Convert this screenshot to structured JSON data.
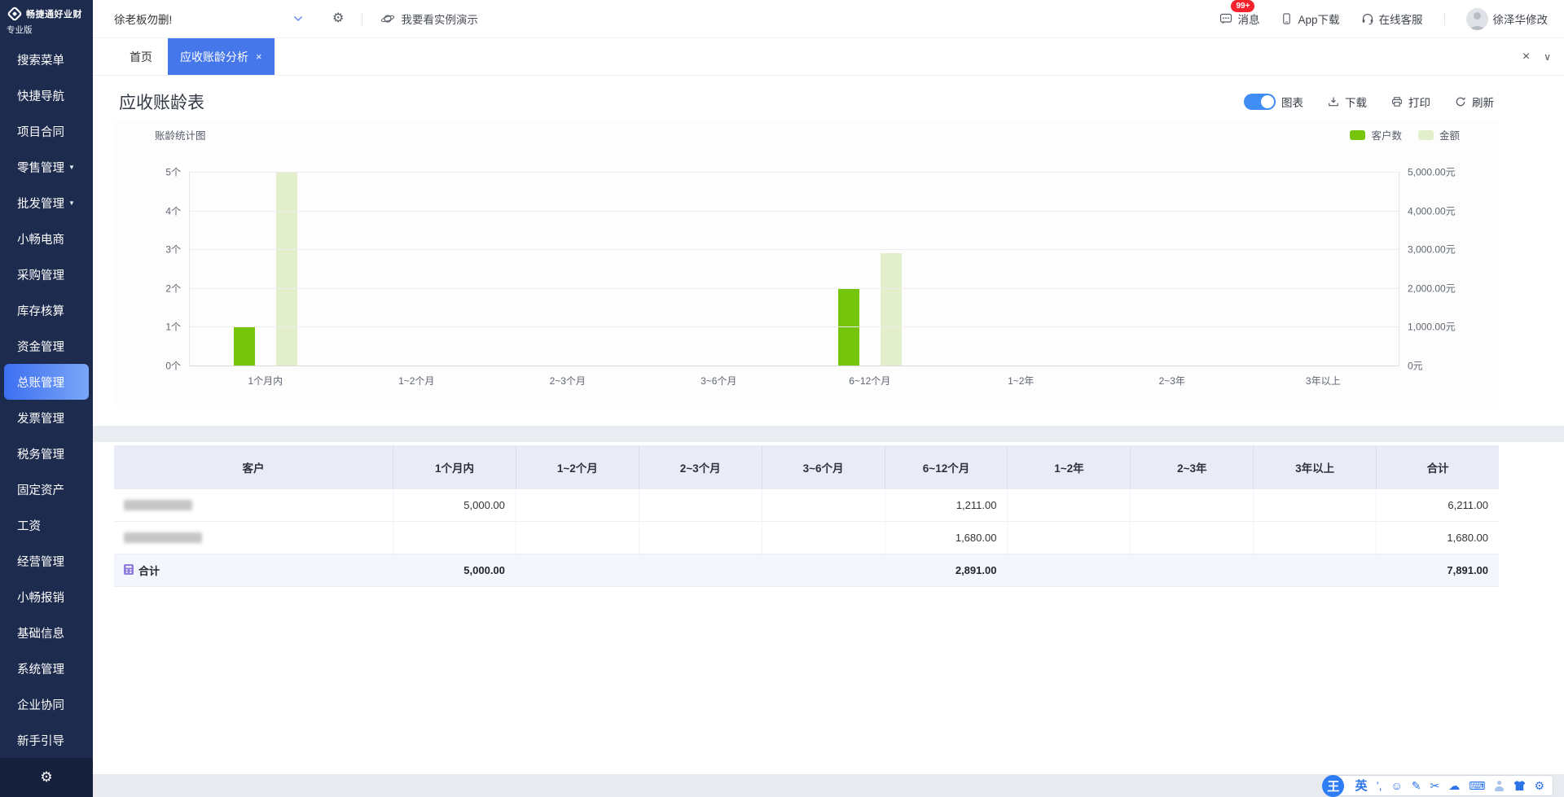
{
  "colors": {
    "accent": "#4677ea",
    "sidebar_bg": "#1d2b4e",
    "badge": "#f5222d",
    "series_customers": "#76c50c",
    "series_amount": "#e3efca"
  },
  "icons": {
    "close": "×",
    "chevron_small": "∨",
    "caret_down": "▼",
    "gear": "⚙"
  },
  "sidebar": {
    "logo_title": "畅捷通好业财",
    "logo_subtitle": "专业版",
    "items": [
      {
        "label": "搜索菜单"
      },
      {
        "label": "快捷导航"
      },
      {
        "label": "项目合同"
      },
      {
        "label": "零售管理",
        "arrow": true
      },
      {
        "label": "批发管理",
        "arrow": true
      },
      {
        "label": "小畅电商"
      },
      {
        "label": "采购管理"
      },
      {
        "label": "库存核算"
      },
      {
        "label": "资金管理"
      },
      {
        "label": "总账管理",
        "active": true
      },
      {
        "label": "发票管理"
      },
      {
        "label": "税务管理"
      },
      {
        "label": "固定资产"
      },
      {
        "label": "工资"
      },
      {
        "label": "经营管理"
      },
      {
        "label": "小畅报销"
      },
      {
        "label": "基础信息"
      },
      {
        "label": "系统管理"
      },
      {
        "label": "企业协同"
      },
      {
        "label": "新手引导"
      }
    ]
  },
  "topbar": {
    "workspace": "徐老板勿删!",
    "demo_label": "我要看实例演示",
    "messages_label": "消息",
    "messages_badge": "99+",
    "app_label": "App下载",
    "service_label": "在线客服",
    "username": "徐泽华修改"
  },
  "tabs": {
    "home": "首页",
    "active": "应收账龄分析"
  },
  "page": {
    "title": "应收账龄表",
    "chart_toggle_label": "图表",
    "download_label": "下载",
    "print_label": "打印",
    "refresh_label": "刷新"
  },
  "chart_data": {
    "type": "bar",
    "title": "账龄统计图",
    "categories": [
      "1个月内",
      "1~2个月",
      "2~3个月",
      "3~6个月",
      "6~12个月",
      "1~2年",
      "2~3年",
      "3年以上"
    ],
    "series": [
      {
        "name": "客户数",
        "axis": "left",
        "color": "#76c50c",
        "values": [
          1,
          0,
          0,
          0,
          2,
          0,
          0,
          0
        ]
      },
      {
        "name": "金额",
        "axis": "right",
        "color": "#e3efca",
        "values": [
          5000,
          0,
          0,
          0,
          2891,
          0,
          0,
          0
        ]
      }
    ],
    "left_axis": {
      "ticks": [
        "0个",
        "1个",
        "2个",
        "3个",
        "4个",
        "5个"
      ],
      "min": 0,
      "max": 5
    },
    "right_axis": {
      "ticks": [
        "0元",
        "1,000.00元",
        "2,000.00元",
        "3,000.00元",
        "4,000.00元",
        "5,000.00元"
      ],
      "min": 0,
      "max": 5000
    },
    "grid": true,
    "legend_position": "top-right"
  },
  "table": {
    "columns": [
      "客户",
      "1个月内",
      "1~2个月",
      "2~3个月",
      "3~6个月",
      "6~12个月",
      "1~2年",
      "2~3年",
      "3年以上",
      "合计"
    ],
    "rows": [
      {
        "customer_blurred": true,
        "values": [
          "5,000.00",
          "",
          "",
          "",
          "1,211.00",
          "",
          "",
          "",
          "6,211.00"
        ]
      },
      {
        "customer_blurred": true,
        "values": [
          "",
          "",
          "",
          "",
          "1,680.00",
          "",
          "",
          "",
          "1,680.00"
        ]
      }
    ],
    "total": {
      "label": "合计",
      "values": [
        "5,000.00",
        "",
        "",
        "",
        "2,891.00",
        "",
        "",
        "",
        "7,891.00"
      ]
    }
  },
  "ime": {
    "logo_char": "王",
    "items": [
      {
        "name": "english-mode-icon",
        "glyph": "英",
        "bold": true
      },
      {
        "name": "punctuation-icon",
        "glyph": "’,"
      },
      {
        "name": "emoji-icon",
        "glyph": "☺"
      },
      {
        "name": "pencil-icon",
        "glyph": "✎"
      },
      {
        "name": "scissors-icon",
        "glyph": "✂"
      },
      {
        "name": "cloud-icon",
        "glyph": "☁"
      },
      {
        "name": "keyboard-icon",
        "glyph": "⌨"
      },
      {
        "name": "person-icon",
        "shape": "person"
      },
      {
        "name": "tshirt-icon",
        "shape": "tshirt"
      },
      {
        "name": "gear-icon",
        "glyph": "⚙"
      }
    ]
  }
}
